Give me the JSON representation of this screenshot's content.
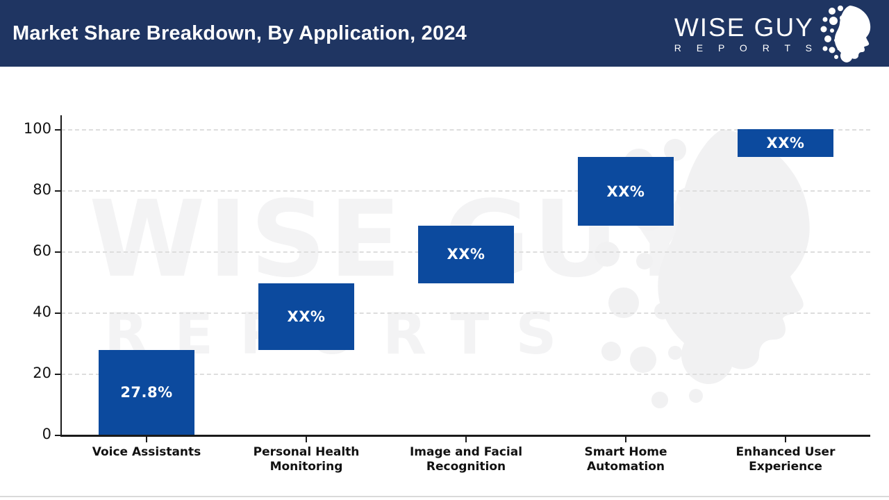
{
  "header": {
    "title": "Market Share Breakdown, By Application, 2024",
    "bg_color": "#1f3562",
    "logo": {
      "line1": "WISE GUY",
      "line2": "R E P O R T S"
    }
  },
  "watermark": {
    "line1": "WISE GUY",
    "line2": "REPORTS"
  },
  "chart_data": {
    "type": "bar",
    "variant": "waterfall",
    "title": "Market Share Breakdown, By Application, 2024",
    "categories": [
      "Voice Assistants",
      "Personal Health\nMonitoring",
      "Image and Facial\nRecognition",
      "Smart Home\nAutomation",
      "Enhanced User\nExperience"
    ],
    "series": [
      {
        "name": "Market share (%)",
        "segments": [
          {
            "category": "Voice Assistants",
            "start": 0,
            "end": 27.8,
            "label": "27.8%"
          },
          {
            "category": "Personal Health Monitoring",
            "start": 27.8,
            "end": 49.5,
            "label": "XX%"
          },
          {
            "category": "Image and Facial Recognition",
            "start": 49.5,
            "end": 68.5,
            "label": "XX%"
          },
          {
            "category": "Smart Home Automation",
            "start": 68.5,
            "end": 90.8,
            "label": "XX%"
          },
          {
            "category": "Enhanced User Experience",
            "start": 90.8,
            "end": 100,
            "label": "XX%"
          }
        ]
      }
    ],
    "xlabel": "",
    "ylabel": "",
    "ylim": [
      0,
      105
    ],
    "yticks": [
      0,
      20,
      40,
      60,
      80,
      100
    ],
    "grid": "horizontal-dashed",
    "legend": "none",
    "bar_color": "#0c4a9e",
    "bar_label_color": "#ffffff",
    "axis_color": "#1a1a1a",
    "gridline_color": "#dddddd"
  }
}
